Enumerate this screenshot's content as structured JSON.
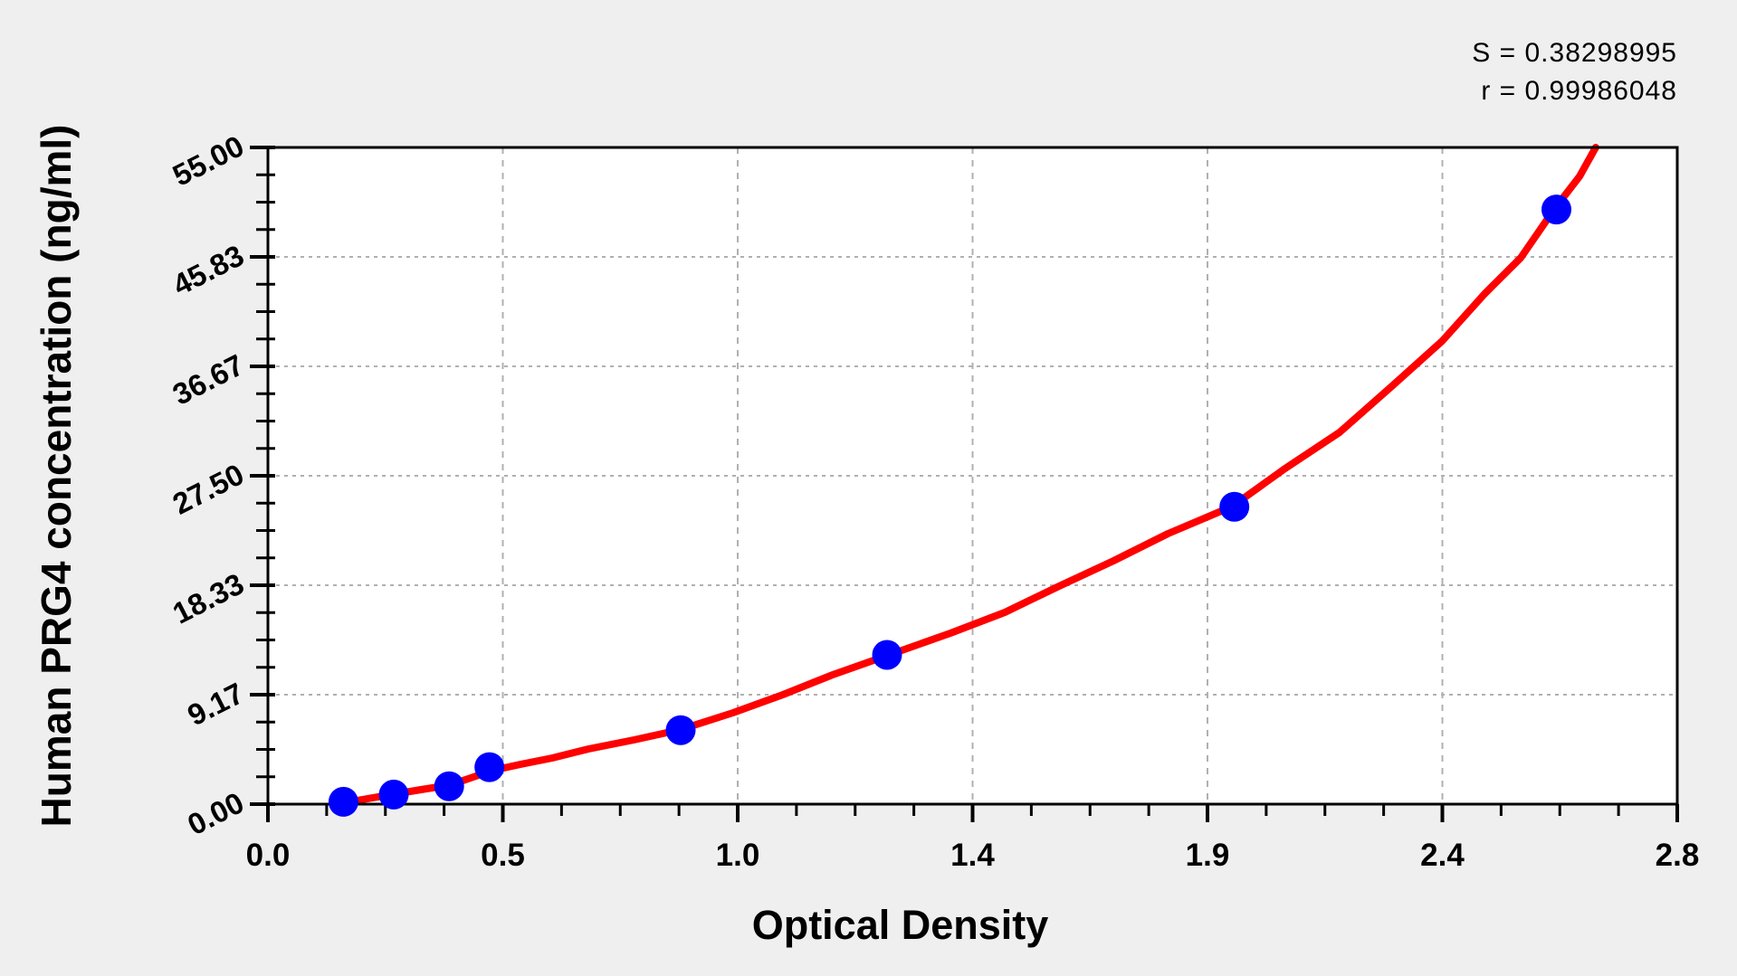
{
  "chart_data": {
    "type": "scatter",
    "title": "",
    "xlabel": "Optical Density",
    "ylabel": "Human PRG4 concentration (ng/ml)",
    "stats": {
      "s": "S = 0.38298995",
      "r": "r = 0.99986048"
    },
    "xlim": [
      0,
      2.8
    ],
    "ylim": [
      0,
      55
    ],
    "x_tick_labels": [
      "0.0",
      "0.5",
      "1.0",
      "1.4",
      "1.9",
      "2.4",
      "2.8"
    ],
    "y_tick_labels": [
      "55.00",
      "45.83",
      "36.67",
      "27.50",
      "18.33",
      "9.17",
      "0.00"
    ],
    "grid": true,
    "legend": false,
    "points": [
      {
        "od": 0.15,
        "conc": 0.2
      },
      {
        "od": 0.25,
        "conc": 0.8
      },
      {
        "od": 0.36,
        "conc": 1.5
      },
      {
        "od": 0.44,
        "conc": 3.1
      },
      {
        "od": 0.82,
        "conc": 6.2
      },
      {
        "od": 1.23,
        "conc": 12.5
      },
      {
        "od": 1.92,
        "conc": 24.9
      },
      {
        "od": 2.56,
        "conc": 49.8
      }
    ],
    "fit_curve": [
      [
        0.138,
        0.0
      ],
      [
        0.187,
        0.38
      ],
      [
        0.25,
        0.83
      ],
      [
        0.304,
        1.21
      ],
      [
        0.361,
        1.59
      ],
      [
        0.403,
        2.2
      ],
      [
        0.444,
        2.8
      ],
      [
        0.502,
        3.33
      ],
      [
        0.565,
        3.86
      ],
      [
        0.637,
        4.62
      ],
      [
        0.727,
        5.38
      ],
      [
        0.817,
        6.21
      ],
      [
        0.924,
        7.65
      ],
      [
        1.023,
        9.17
      ],
      [
        1.122,
        10.83
      ],
      [
        1.234,
        12.5
      ],
      [
        1.356,
        14.32
      ],
      [
        1.464,
        16.06
      ],
      [
        1.572,
        18.26
      ],
      [
        1.68,
        20.38
      ],
      [
        1.788,
        22.65
      ],
      [
        1.915,
        24.92
      ],
      [
        2.021,
        28.11
      ],
      [
        2.129,
        31.14
      ],
      [
        2.237,
        35.15
      ],
      [
        2.333,
        38.79
      ],
      [
        2.417,
        42.73
      ],
      [
        2.489,
        45.76
      ],
      [
        2.556,
        49.85
      ],
      [
        2.606,
        52.58
      ],
      [
        2.638,
        55.0
      ]
    ],
    "colors": {
      "point": "#0000ff",
      "curve": "#ff0000",
      "grid": "#b0b0b0",
      "axis": "#000000",
      "plot_bg": "#ffffff",
      "figure_bg": "#efefef"
    }
  }
}
